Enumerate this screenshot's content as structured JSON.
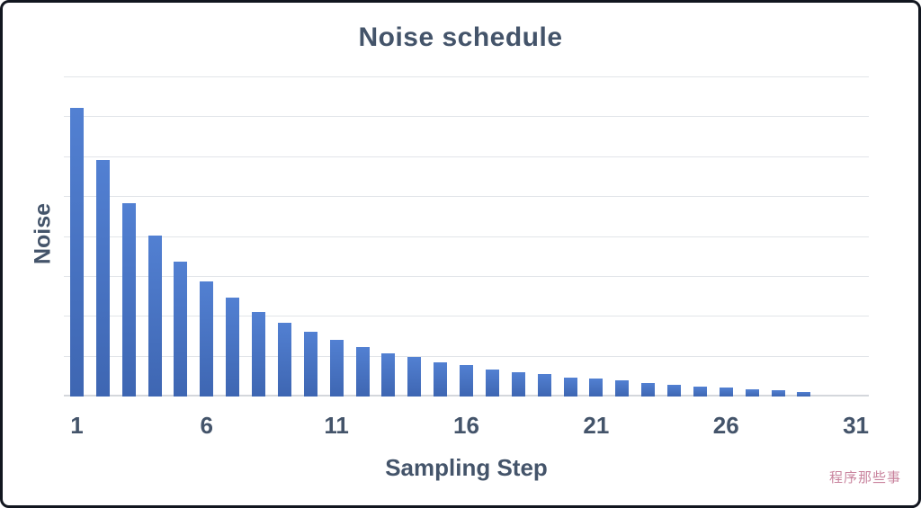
{
  "title": "Noise schedule",
  "watermark": "程序那些事",
  "colors": {
    "text": "#44546A",
    "bar_top": "#507cd2",
    "bar_gradient_top": "#5280d2",
    "bar_gradient_bottom": "#3e66b2",
    "bar_base": "#4472C4",
    "gridline": "#e2e5e9",
    "axis_line": "#d4d7dc",
    "watermark_pink": "#c9849e",
    "frame_border": "#12161f",
    "background": "#ffffff"
  },
  "chart_data": {
    "type": "bar",
    "title": "Noise schedule",
    "xlabel": "Sampling Step",
    "ylabel": "Noise",
    "x": [
      1,
      2,
      3,
      4,
      5,
      6,
      7,
      8,
      9,
      10,
      11,
      12,
      13,
      14,
      15,
      16,
      17,
      18,
      19,
      20,
      21,
      22,
      23,
      24,
      25,
      26,
      27,
      28,
      29,
      30,
      31
    ],
    "values": [
      7.23,
      5.92,
      4.85,
      4.03,
      3.39,
      2.88,
      2.47,
      2.11,
      1.85,
      1.62,
      1.41,
      1.23,
      1.09,
      0.99,
      0.86,
      0.79,
      0.68,
      0.62,
      0.56,
      0.48,
      0.44,
      0.4,
      0.33,
      0.3,
      0.25,
      0.22,
      0.18,
      0.16,
      0.11,
      0,
      0
    ],
    "x_tick_labels": [
      "1",
      "6",
      "11",
      "16",
      "21",
      "26",
      "31"
    ],
    "x_tick_positions": [
      1,
      6,
      11,
      16,
      21,
      26,
      31
    ],
    "ylim": [
      0,
      8
    ],
    "y_gridline_interval": 1,
    "y_tick_labels_shown": false,
    "grid": true,
    "legend": "none"
  }
}
